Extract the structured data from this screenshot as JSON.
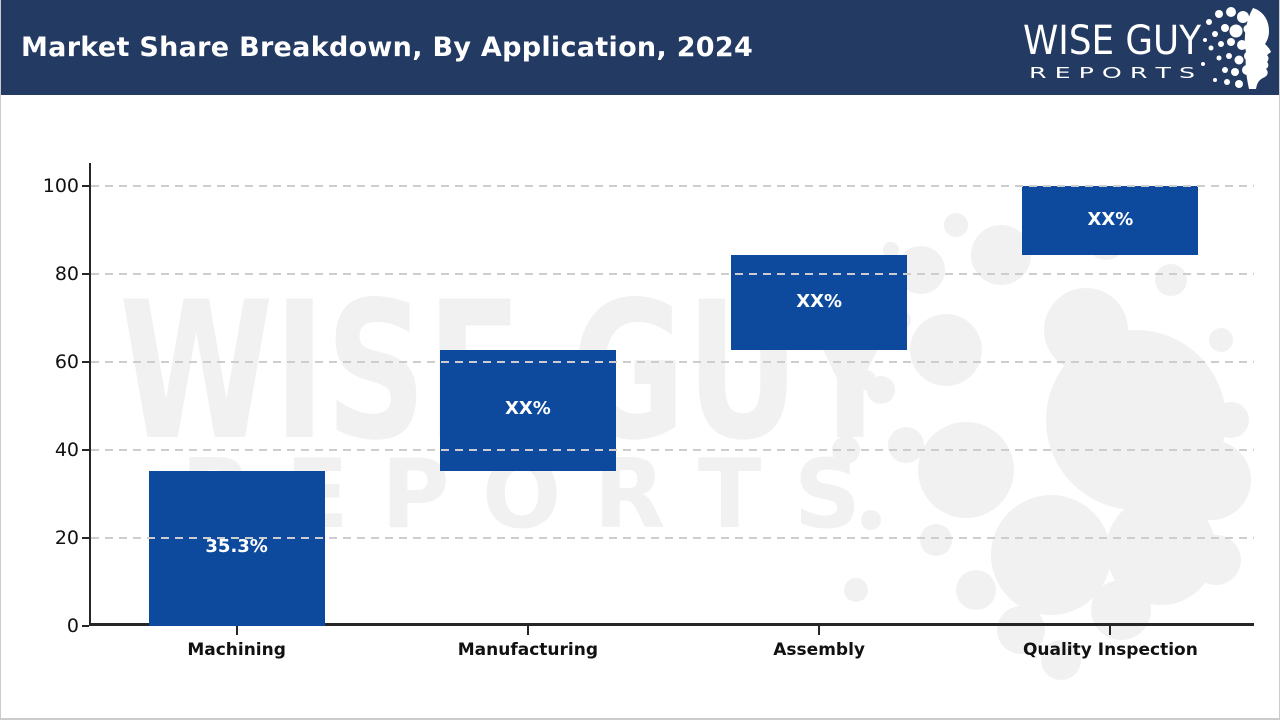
{
  "header": {
    "title": "Market Share Breakdown, By Application, 2024",
    "logo": {
      "brand_line1": "WISE GUY",
      "brand_line2": "R E P O R T S"
    }
  },
  "watermark": {
    "line1": "WISE GUY",
    "line2": "R E P O R T S"
  },
  "chart_data": {
    "type": "bar",
    "subtype": "floating-waterfall",
    "title": "Market Share Breakdown, By Application, 2024",
    "categories": [
      "Machining",
      "Manufacturing",
      "Assembly",
      "Quality Inspection"
    ],
    "segments": [
      {
        "category": "Machining",
        "start": 0,
        "end": 35.3,
        "label": "35.3%"
      },
      {
        "category": "Manufacturing",
        "start": 35.3,
        "end": 62.7,
        "label": "XX%"
      },
      {
        "category": "Assembly",
        "start": 62.7,
        "end": 84.3,
        "label": "XX%"
      },
      {
        "category": "Quality Inspection",
        "start": 84.3,
        "end": 100,
        "label": "XX%"
      }
    ],
    "yticks": [
      0,
      20,
      40,
      60,
      80,
      100
    ],
    "ylim": [
      0,
      105
    ],
    "xlabel": "",
    "ylabel": "",
    "grid": "horizontal-dashed",
    "legend": "none",
    "colors": {
      "bar": "#0d4a9e",
      "header_bg": "#233a63",
      "grid": "#cdcdcd",
      "axis": "#262626",
      "bar_label": "#ffffff",
      "title_text": "#ffffff",
      "watermark": "#f1f1f1"
    }
  }
}
